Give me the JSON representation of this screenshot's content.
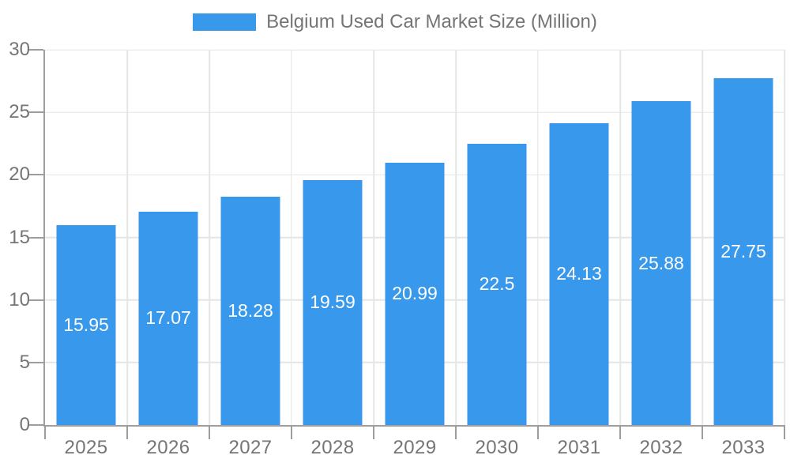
{
  "chart_data": {
    "type": "bar",
    "title": "Belgium Used Car Market Size (Million)",
    "categories": [
      "2025",
      "2026",
      "2027",
      "2028",
      "2029",
      "2030",
      "2031",
      "2032",
      "2033"
    ],
    "values": [
      15.95,
      17.07,
      18.28,
      19.59,
      20.99,
      22.5,
      24.13,
      25.88,
      27.75
    ],
    "bar_labels": [
      "15.95",
      "17.07",
      "18.28",
      "19.59",
      "20.99",
      "22.5",
      "24.13",
      "25.88",
      "27.75"
    ],
    "xlabel": "",
    "ylabel": "",
    "ylim": [
      0,
      30
    ],
    "yticks": [
      0,
      5,
      10,
      15,
      20,
      25,
      30
    ],
    "grid": true,
    "legend_position": "top"
  },
  "colors": {
    "bar": "#3898EC",
    "bar_label": "#FFFFFF",
    "grid_line": "#E5E5E5",
    "axis_line": "#9E9E9E",
    "tick_label": "#757575",
    "legend_label": "#757575",
    "background": "#FFFFFF"
  }
}
